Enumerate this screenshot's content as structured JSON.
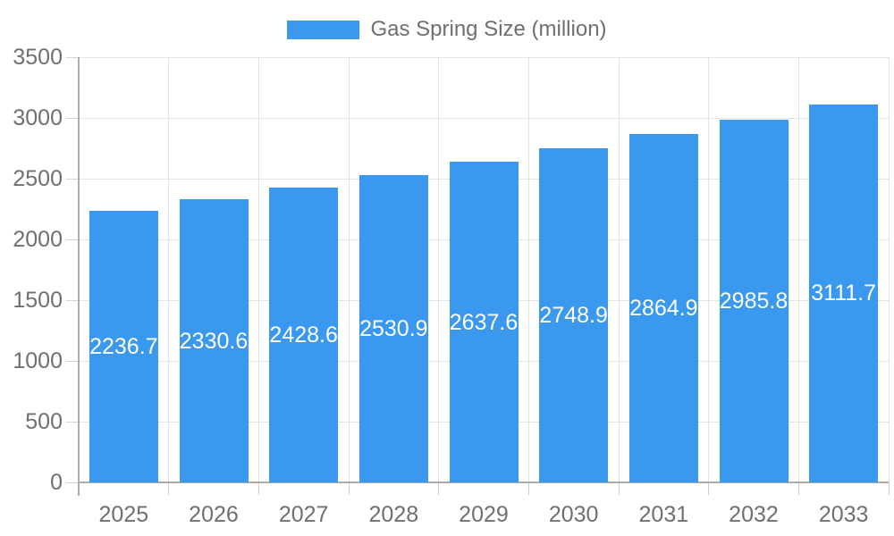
{
  "legend": {
    "label": "Gas Spring Size (million)"
  },
  "chart_data": {
    "type": "bar",
    "title": "",
    "series_name": "Gas Spring Size (million)",
    "categories": [
      "2025",
      "2026",
      "2027",
      "2028",
      "2029",
      "2030",
      "2031",
      "2032",
      "2033"
    ],
    "values": [
      2236.7,
      2330.6,
      2428.6,
      2530.9,
      2637.6,
      2748.9,
      2864.9,
      2985.8,
      3111.7
    ],
    "xlabel": "",
    "ylabel": "",
    "ylim": [
      0,
      3500
    ],
    "yticks": [
      0,
      500,
      1000,
      1500,
      2000,
      2500,
      3000,
      3500
    ],
    "grid": true,
    "legend_position": "top-center",
    "bar_color": "#3a99ee",
    "value_label_color": "#ffffff",
    "axis_text_color": "#6f6f6f",
    "gridline_color": "#e3e3e3",
    "axis_line_color": "#ababab"
  }
}
